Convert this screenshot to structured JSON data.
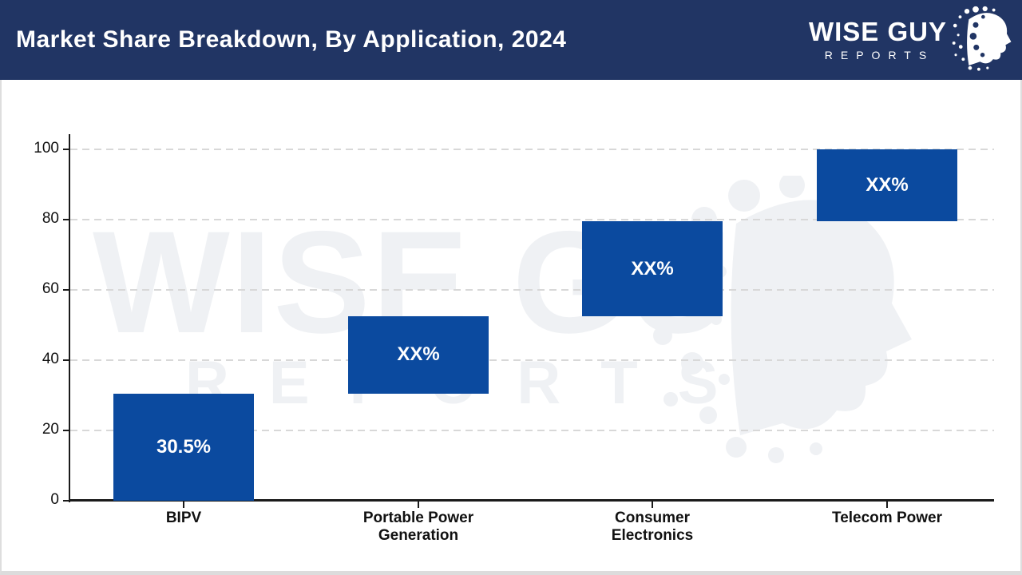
{
  "header": {
    "title": "Market Share Breakdown, By Application, 2024",
    "logo": {
      "line1": "WISE GUY",
      "line2": "REPORTS"
    }
  },
  "watermark": {
    "line1": "WISE GUY",
    "line2": "REPORTS"
  },
  "colors": {
    "header_bg": "#213564",
    "bar": "#0b4a9f",
    "grid": "#d8d8d8",
    "axis": "#1a1a1a",
    "watermark": "#eff1f4",
    "bar_label": "#ffffff"
  },
  "chart_data": {
    "type": "bar",
    "variant": "waterfall",
    "title": "Market Share Breakdown, By Application, 2024",
    "categories": [
      "BIPV",
      "Portable Power\nGeneration",
      "Consumer\nElectronics",
      "Telecom Power"
    ],
    "series": [
      {
        "name": "Market share (%)",
        "segments": [
          {
            "start": 0,
            "end": 30.5,
            "label": "30.5%"
          },
          {
            "start": 30.5,
            "end": 52.5,
            "label": "XX%"
          },
          {
            "start": 52.5,
            "end": 79.5,
            "label": "XX%"
          },
          {
            "start": 79.5,
            "end": 100,
            "label": "XX%"
          }
        ]
      }
    ],
    "ylim": [
      0,
      100
    ],
    "yticks": [
      0,
      20,
      40,
      60,
      80,
      100
    ],
    "ytick_labels": [
      "0",
      "20",
      "40",
      "60",
      "80",
      "100"
    ],
    "grid": "horizontal-dashed",
    "legend": "none",
    "bar_color": "#0b4a9f"
  }
}
